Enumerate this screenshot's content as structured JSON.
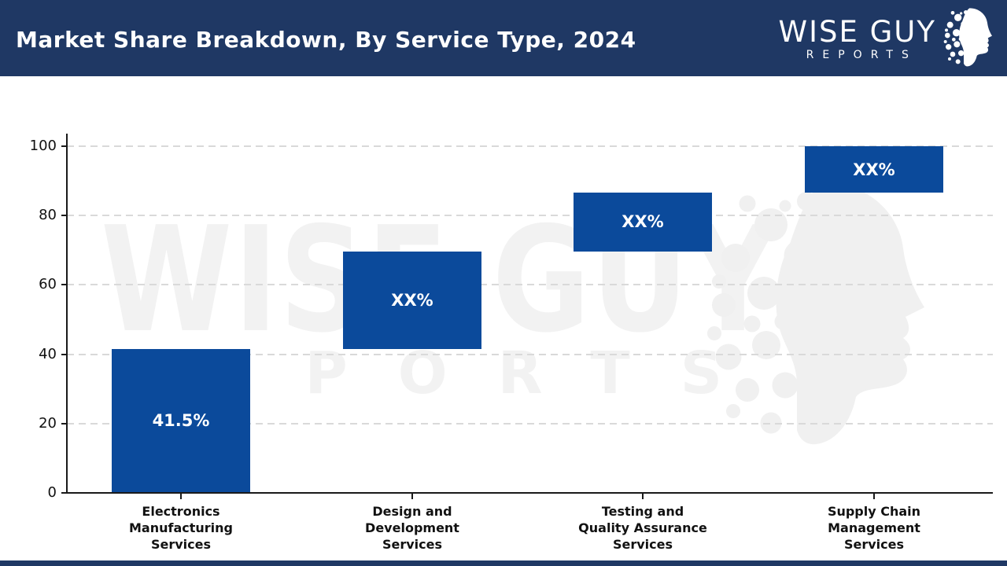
{
  "header": {
    "title": "Market Share Breakdown, By Service Type, 2024",
    "logo": {
      "primary": "WISE GUY",
      "secondary": "REPORTS"
    }
  },
  "watermark": {
    "primary": "WISE GUY",
    "secondary": "REPORTS"
  },
  "chart_data": {
    "type": "bar",
    "subtype": "waterfall",
    "title": "Market Share Breakdown, By Service Type, 2024",
    "xlabel": "",
    "ylabel": "",
    "ylim": [
      0,
      100
    ],
    "yticks": [
      0,
      20,
      40,
      60,
      80,
      100
    ],
    "grid": "horizontal-dashed",
    "legend": "none",
    "categories": [
      [
        "Electronics",
        "Manufacturing",
        "Services"
      ],
      [
        "Design and",
        "Development",
        "Services"
      ],
      [
        "Testing and",
        "Quality Assurance",
        "Services"
      ],
      [
        "Supply Chain",
        "Management",
        "Services"
      ]
    ],
    "bars": [
      {
        "category": "Electronics Manufacturing Services",
        "label": "41.5%",
        "start": 0,
        "end": 41.5
      },
      {
        "category": "Design and Development Services",
        "label": "XX%",
        "start": 41.5,
        "end": 69.7
      },
      {
        "category": "Testing and Quality Assurance Services",
        "label": "XX%",
        "start": 69.7,
        "end": 86.6
      },
      {
        "category": "Supply Chain Management Services",
        "label": "XX%",
        "start": 86.6,
        "end": 100
      }
    ]
  },
  "colors": {
    "header_bg": "#1f3864",
    "footer_bg": "#1f3864",
    "bar": "#0b4a9b",
    "grid": "#d9d9d9",
    "axis": "#1a1a1a",
    "watermark": "#f2f2f2",
    "title_text": "#ffffff",
    "bar_label_text": "#ffffff"
  }
}
